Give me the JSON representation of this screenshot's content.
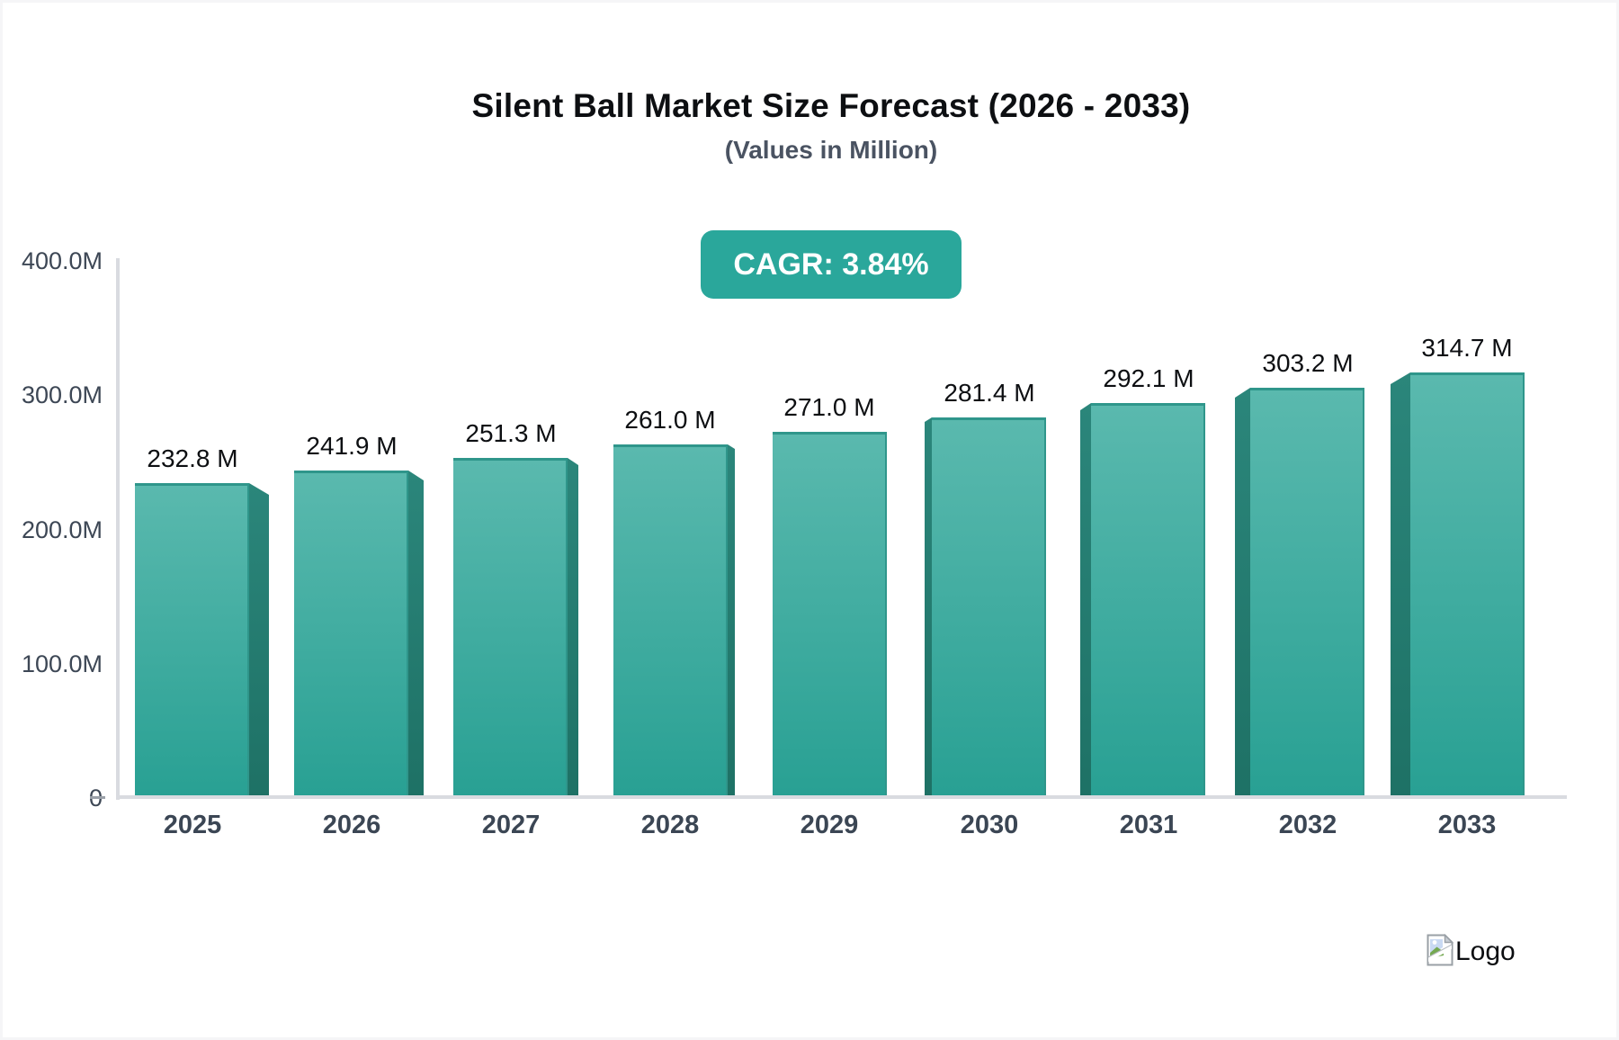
{
  "header": {
    "title": "Silent Ball Market Size Forecast (2026 - 2033)",
    "subtitle": "(Values in Million)",
    "cagr_badge": "CAGR: 3.84%"
  },
  "footer": {
    "logo_text": "Logo"
  },
  "chart_data": {
    "type": "bar",
    "title": "Silent Ball Market Size Forecast (2026 - 2033)",
    "subtitle": "(Values in Million)",
    "cagr_percent": "3.84%",
    "unit": "Million",
    "categories": [
      "2025",
      "2026",
      "2027",
      "2028",
      "2029",
      "2030",
      "2031",
      "2032",
      "2033"
    ],
    "values": [
      232.8,
      241.9,
      251.3,
      261.0,
      271.0,
      281.4,
      292.1,
      303.2,
      314.7
    ],
    "value_labels": [
      "232.8 M",
      "241.9 M",
      "251.3 M",
      "261.0 M",
      "271.0 M",
      "281.4 M",
      "292.1 M",
      "303.2 M",
      "314.7 M"
    ],
    "yticks": [
      {
        "label": "400.0M",
        "value": 400
      },
      {
        "label": "300.0M",
        "value": 300
      },
      {
        "label": "200.0M",
        "value": 200
      },
      {
        "label": "100.0M",
        "value": 100
      },
      {
        "label": "0",
        "value": 0
      }
    ],
    "ylim": [
      0,
      400
    ],
    "grid": false,
    "legend": false,
    "style_3d": true,
    "colors": {
      "accent": "#2aa79b",
      "bar_face_top": "#5ab9ae",
      "bar_face_bottom": "#28a093",
      "bar_face_edge": "#2f968b",
      "bar_side_top": "#2b867b",
      "bar_side_bottom": "#1e7165",
      "axis_line": "#d9dbe0",
      "tick_dash": "#9aa0a8",
      "axis_text": "#3d4755",
      "category_text": "#3b4654",
      "value_text": "#0d0f12",
      "title_text": "#0d0f12",
      "subtitle_text": "#4a5362"
    }
  }
}
